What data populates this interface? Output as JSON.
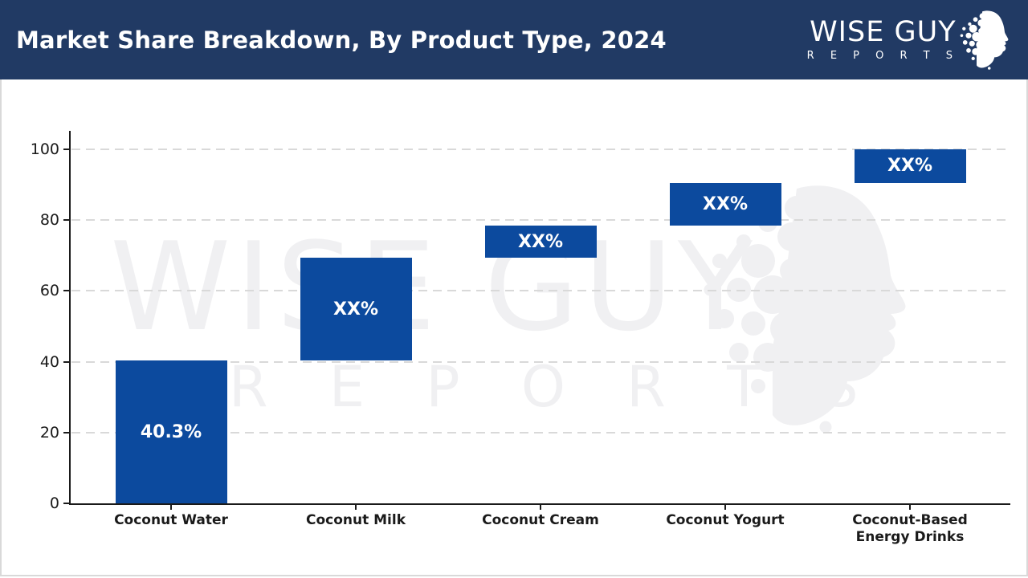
{
  "header": {
    "title": "Market Share Breakdown, By Product Type, 2024",
    "logo": {
      "name": "WISE GUY",
      "tagline": "R E P O R T S"
    }
  },
  "watermark": {
    "word1": "WISE GUY",
    "word2": "R E P O R T S"
  },
  "colors": {
    "header_bg": "#213a64",
    "bar_fill": "#0c4a9e",
    "bar_label": "#ffffff",
    "grid_line": "#d9d9d9",
    "axis_line": "#1a1a1a",
    "tick_label": "#1a1a1a",
    "watermark": "#f0f0f2",
    "canvas_border": "#d9d9d9"
  },
  "chart_data": {
    "type": "bar",
    "variant": "waterfall-cumulative-percent",
    "title": "Market Share Breakdown, By Product Type, 2024",
    "categories": [
      "Coconut Water",
      "Coconut Milk",
      "Coconut Cream",
      "Coconut Yogurt",
      "Coconut-Based Energy Drinks"
    ],
    "series": [
      {
        "name": "Market share (%)",
        "segments": [
          {
            "category": "Coconut Water",
            "start": 0,
            "end": 40.3,
            "value": 40.3,
            "label": "40.3%"
          },
          {
            "category": "Coconut Milk",
            "start": 40.3,
            "end": 69.4,
            "value": 29.1,
            "label": "XX%"
          },
          {
            "category": "Coconut Cream",
            "start": 69.4,
            "end": 78.4,
            "value": 9.0,
            "label": "XX%"
          },
          {
            "category": "Coconut Yogurt",
            "start": 78.4,
            "end": 90.5,
            "value": 12.1,
            "label": "XX%"
          },
          {
            "category": "Coconut-Based Energy Drinks",
            "start": 90.5,
            "end": 100,
            "value": 9.5,
            "label": "XX%"
          }
        ]
      }
    ],
    "xlabel": "",
    "ylabel": "",
    "ylim": [
      0,
      100
    ],
    "yticks": [
      0,
      20,
      40,
      60,
      80,
      100
    ],
    "grid": "horizontal-dashed",
    "legend": "none"
  }
}
